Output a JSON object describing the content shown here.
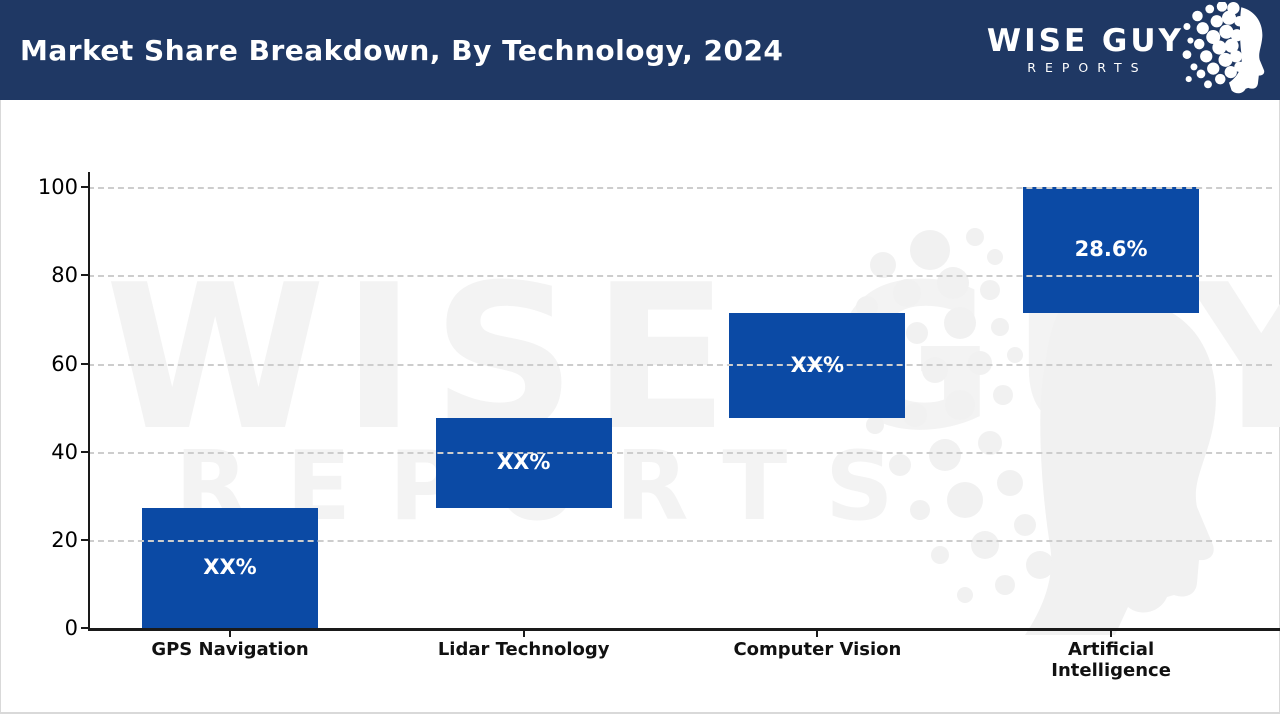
{
  "header": {
    "title": "Market Share Breakdown, By Technology, 2024",
    "logo": {
      "name": "WISE GUY",
      "sub": "REPORTS"
    }
  },
  "watermark": {
    "text": "WISE GUY",
    "sub": "REPORTS"
  },
  "chart_data": {
    "type": "bar",
    "subtype": "floating-waterfall",
    "title": "Market Share Breakdown, By Technology, 2024",
    "categories": [
      "GPS Navigation",
      "Lidar Technology",
      "Computer Vision",
      "Artificial\nIntelligence"
    ],
    "bars": [
      {
        "category": "GPS Navigation",
        "start": 0,
        "end": 27.2,
        "label": "XX%"
      },
      {
        "category": "Lidar Technology",
        "start": 27.2,
        "end": 47.6,
        "label": "XX%"
      },
      {
        "category": "Computer Vision",
        "start": 47.6,
        "end": 71.4,
        "label": "XX%"
      },
      {
        "category": "Artificial Intelligence",
        "start": 71.4,
        "end": 100,
        "label": "28.6%"
      }
    ],
    "yticks": [
      0,
      20,
      40,
      60,
      80,
      100
    ],
    "ylim": [
      0,
      105
    ],
    "grid": "horizontal-dashed",
    "legend": false,
    "bar_color": "#0b4aa5",
    "bar_label_color": "#ffffff"
  },
  "colors": {
    "header_bg": "#1f3864",
    "watermark": "#f3f3f3",
    "grid": "#cdcdcd",
    "axis": "#1a1a1a"
  }
}
